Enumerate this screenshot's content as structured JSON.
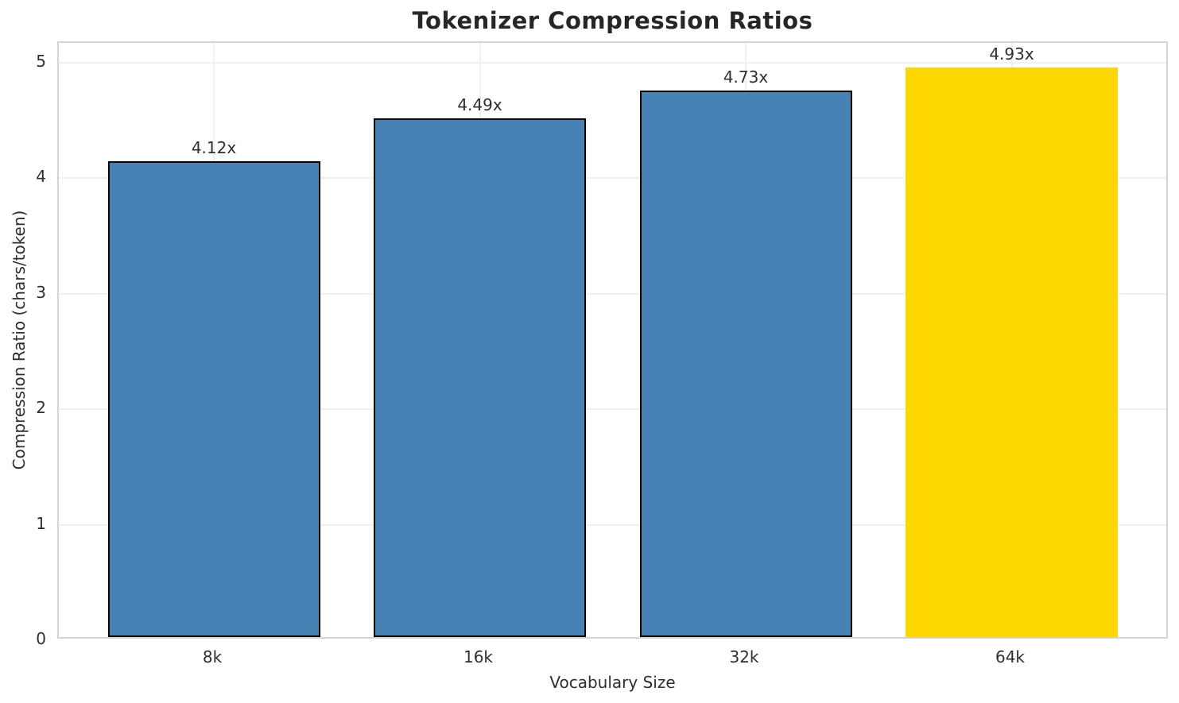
{
  "chart_data": {
    "type": "bar",
    "title": "Tokenizer Compression Ratios",
    "xlabel": "Vocabulary Size",
    "ylabel": "Compression Ratio (chars/token)",
    "categories": [
      "8k",
      "16k",
      "32k",
      "64k"
    ],
    "values": [
      4.12,
      4.49,
      4.73,
      4.93
    ],
    "bar_labels": [
      "4.12x",
      "4.49x",
      "4.73x",
      "4.93x"
    ],
    "bar_colors": [
      "#4682B4",
      "#4682B4",
      "#4682B4",
      "#FFD700"
    ],
    "bar_edge_colors": [
      "#000000",
      "#000000",
      "#000000",
      "#FFD700"
    ],
    "y_ticks": [
      0,
      1,
      2,
      3,
      4,
      5
    ],
    "ylim": [
      0,
      5.17
    ],
    "grid": true,
    "legend": "none",
    "colors": {
      "bar_default": "#4682B4",
      "bar_highlight": "#FFD700",
      "grid": "#f0f0f0",
      "spine": "#d4d4d4",
      "text": "#2f2f2f",
      "title_text": "#262626"
    }
  }
}
